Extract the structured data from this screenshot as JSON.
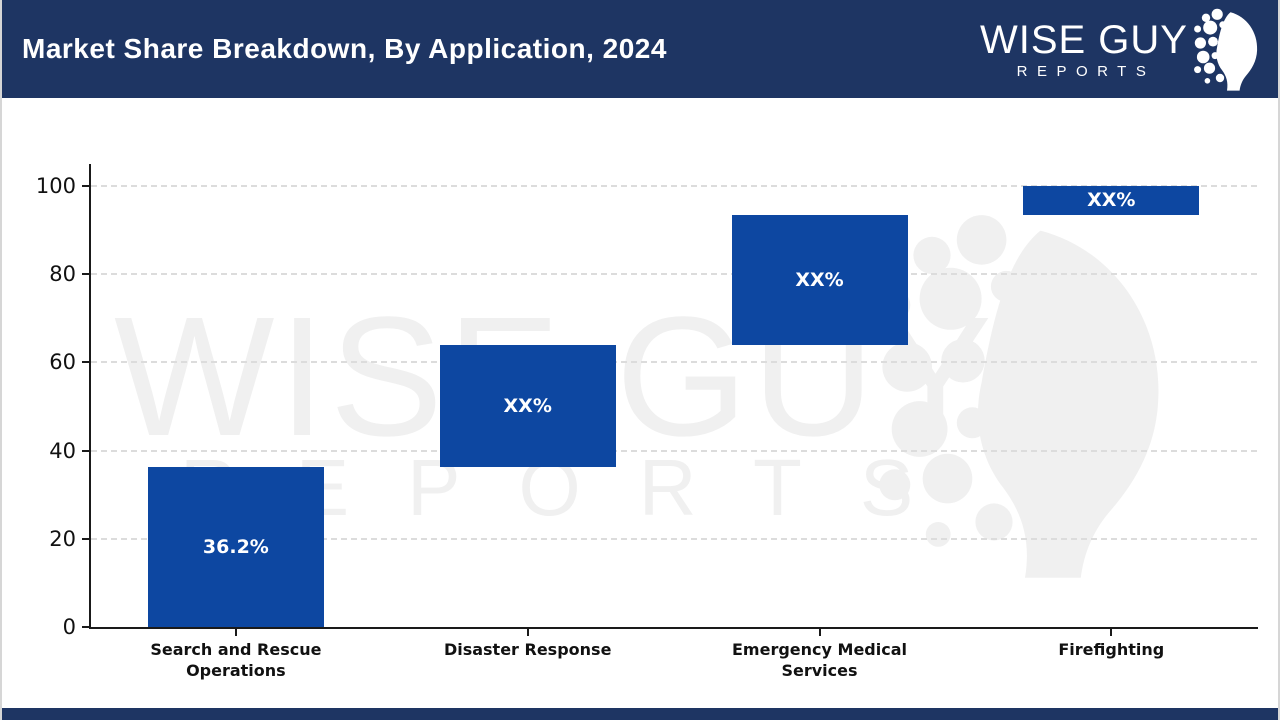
{
  "header": {
    "title": "Market Share Breakdown, By Application, 2024",
    "logo": {
      "line1": "WISE GUY",
      "line2": "REPORTS"
    }
  },
  "watermark": {
    "line1": "WISE GUY",
    "line2": "REPORTS"
  },
  "chart_data": {
    "type": "bar",
    "subtype": "floating-waterfall",
    "title": "Market Share Breakdown, By Application, 2024",
    "xlabel": "",
    "ylabel": "",
    "ylim": [
      0,
      105
    ],
    "y_ticks": [
      0,
      20,
      40,
      60,
      80,
      100
    ],
    "grid": "horizontal-dashed",
    "legend": "none",
    "categories": [
      {
        "lines": [
          "Search and Rescue",
          "Operations"
        ]
      },
      {
        "lines": [
          "Disaster Response"
        ]
      },
      {
        "lines": [
          "Emergency Medical",
          "Services"
        ]
      },
      {
        "lines": [
          "Firefighting"
        ]
      }
    ],
    "segments": [
      {
        "category": "Search and Rescue Operations",
        "start": 0,
        "end": 36.2,
        "label": "36.2%"
      },
      {
        "category": "Disaster Response",
        "start": 36.2,
        "end": 64,
        "label": "XX%"
      },
      {
        "category": "Emergency Medical Services",
        "start": 64,
        "end": 93.5,
        "label": "XX%"
      },
      {
        "category": "Firefighting",
        "start": 93.5,
        "end": 100,
        "label": "XX%"
      }
    ]
  },
  "colors": {
    "header_bg": "#1e3563",
    "footer_bg": "#1e3563",
    "bar": "#0d47a1",
    "grid": "#dcdcdc",
    "axis": "#1a1a1a",
    "tick_text": "#111111",
    "bar_label": "#ffffff",
    "watermark": "#f0f0f0",
    "border": "#d6d6d6"
  }
}
